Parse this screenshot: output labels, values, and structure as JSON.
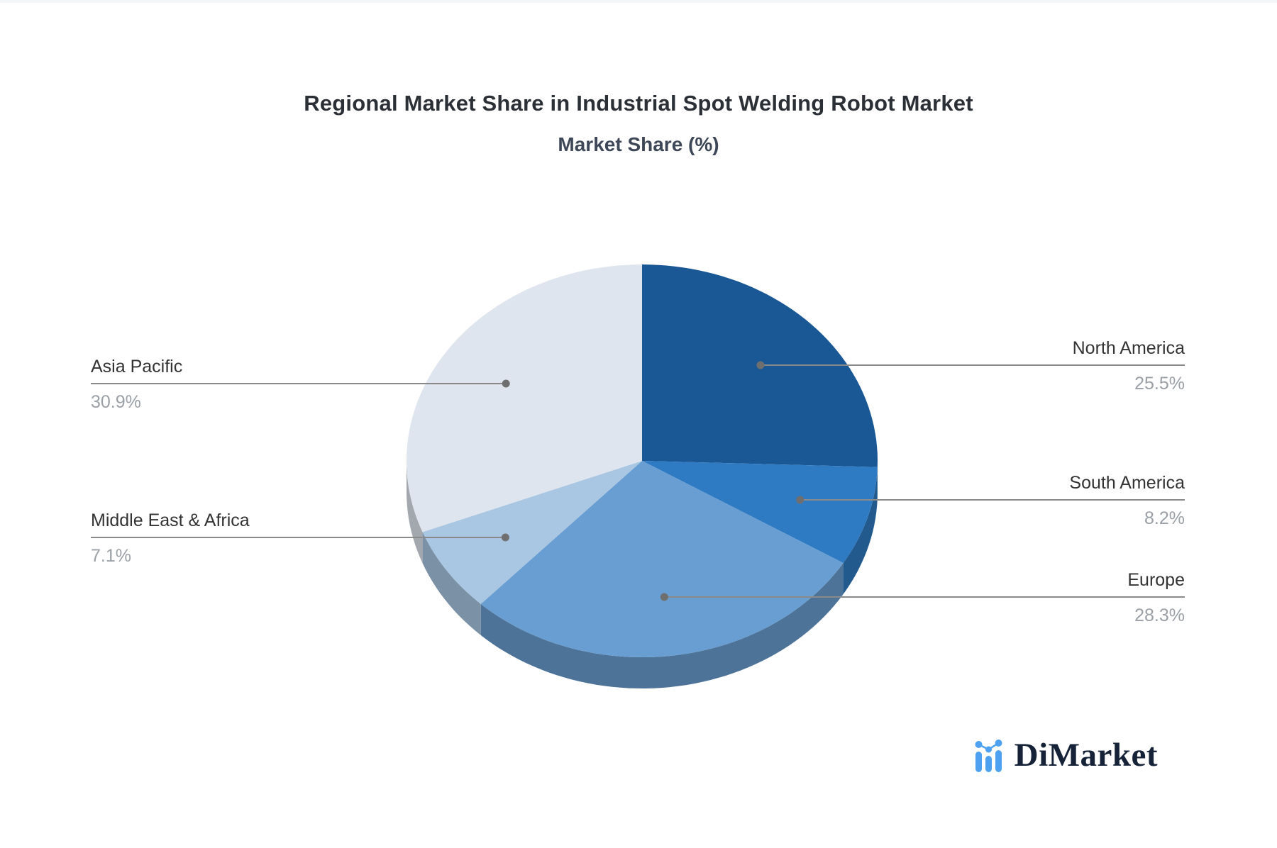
{
  "header": {
    "title": "Regional Market Share in Industrial Spot Welding Robot Market",
    "subtitle": "Market Share (%)"
  },
  "chart_data": {
    "type": "pie",
    "style": "3d",
    "title": "Regional Market Share in Industrial Spot Welding Robot Market",
    "subtitle": "Market Share (%)",
    "unit": "%",
    "start_angle": "12-o-clock",
    "direction": "clockwise",
    "legend": "none",
    "series": [
      {
        "name": "North America",
        "value": 25.5,
        "label": "25.5%",
        "color": "#1A5795",
        "side": "right"
      },
      {
        "name": "South America",
        "value": 8.2,
        "label": "8.2%",
        "color": "#2F7BC3",
        "side": "right"
      },
      {
        "name": "Europe",
        "value": 28.3,
        "label": "28.3%",
        "color": "#699ED2",
        "side": "right"
      },
      {
        "name": "Middle East & Africa",
        "value": 7.1,
        "label": "7.1%",
        "color": "#A9C6E2",
        "side": "left"
      },
      {
        "name": "Asia Pacific",
        "value": 30.9,
        "label": "30.9%",
        "color": "#DFE5EE",
        "side": "left"
      }
    ],
    "colors": {
      "leader_line": "#8a8a8a",
      "leader_dot": "#6f6f6f",
      "label_name": "#333333",
      "label_value": "#9aa0a6"
    }
  },
  "branding": {
    "logo_text": "DiMarket",
    "logo_text_color": "#152238",
    "icon_color": "#4DA1F0",
    "icon_name": "bar-line-chart-icon"
  }
}
